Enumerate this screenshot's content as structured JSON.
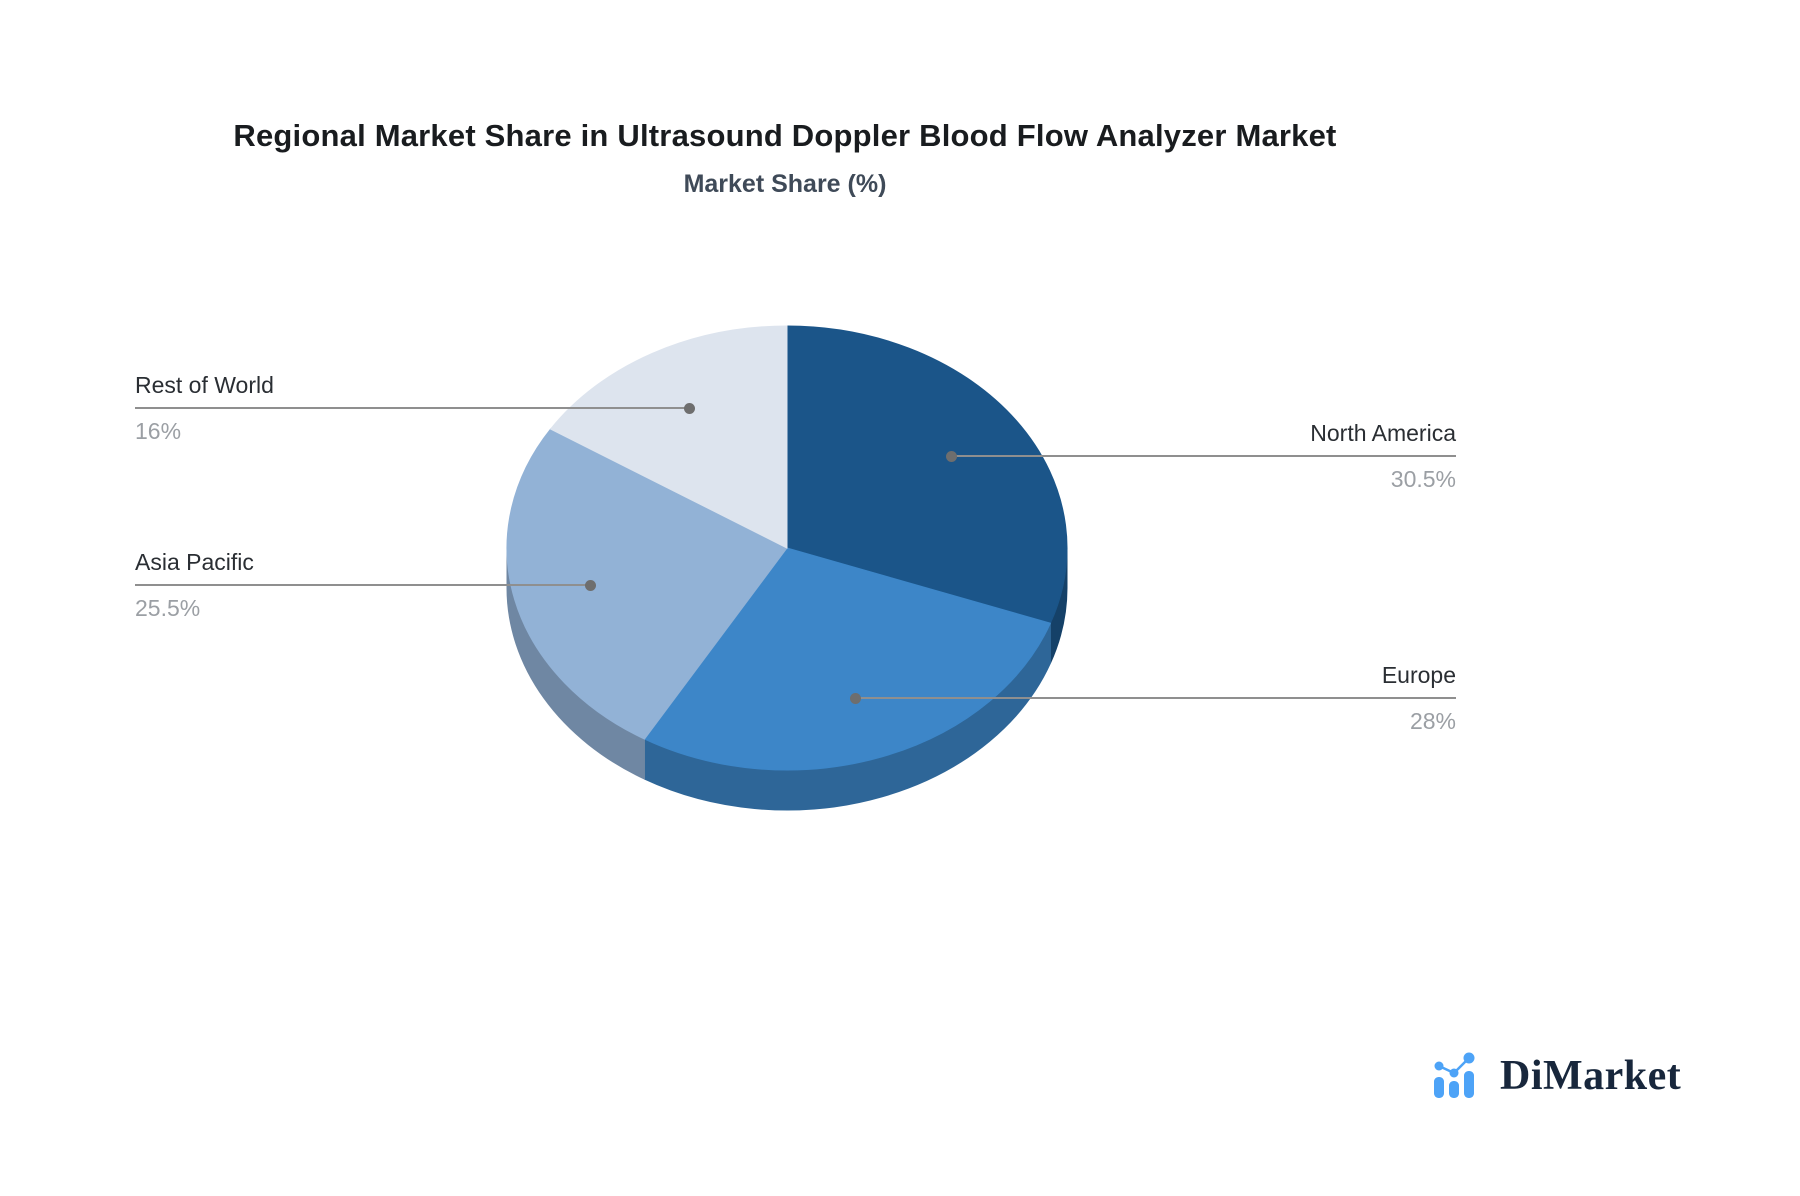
{
  "title": "Regional Market Share in Ultrasound Doppler Blood Flow Analyzer Market",
  "subtitle": "Market Share (%)",
  "logo": {
    "text": "DiMarket",
    "icon": "bar-chart-with-trend-dots-icon",
    "icon_color": "#4da3f7",
    "text_color": "#18273c"
  },
  "chart_data": {
    "type": "pie",
    "style": "3d-extruded",
    "title": "Regional Market Share in Ultrasound Doppler Blood Flow Analyzer Market",
    "subtitle": "Market Share (%)",
    "unit": "%",
    "start_angle": "12-o'clock",
    "direction": "clockwise",
    "legend_position": "callout-labels",
    "slices": [
      {
        "label": "North America",
        "value": 30.5,
        "display": "30.5%",
        "color": "#1b5589",
        "label_side": "right"
      },
      {
        "label": "Europe",
        "value": 28,
        "display": "28%",
        "color": "#3d86c8",
        "label_side": "right"
      },
      {
        "label": "Asia Pacific",
        "value": 25.5,
        "display": "25.5%",
        "color": "#92b2d6",
        "label_side": "left"
      },
      {
        "label": "Rest of World",
        "value": 16,
        "display": "16%",
        "color": "#dde4ee",
        "label_side": "left"
      }
    ],
    "colors": {
      "leader_line": "#8f8f8f",
      "leader_dot": "#6e6e6e",
      "label_text": "#2a2e33",
      "value_text": "#9b9fa4",
      "background": "#ffffff"
    }
  }
}
